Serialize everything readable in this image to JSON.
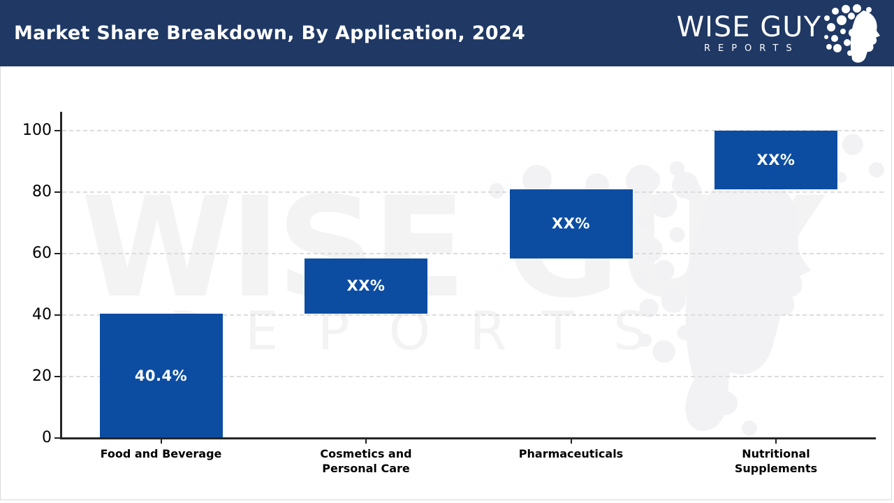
{
  "header": {
    "title": "Market Share Breakdown, By Application, 2024",
    "logo": {
      "brand": "WISE GUY",
      "sub": "REPORTS"
    }
  },
  "watermark": {
    "main": "WISE GUY",
    "sub": "REPORTS"
  },
  "chart_data": {
    "type": "bar",
    "subtype": "waterfall",
    "title": "Market Share Breakdown, By Application, 2024",
    "categories": [
      "Food and Beverage",
      "Cosmetics and\nPersonal Care",
      "Pharmaceuticals",
      "Nutritional\nSupplements"
    ],
    "segments": [
      {
        "name": "Food and Beverage",
        "start": 0,
        "end": 40.4,
        "label": "40.4%"
      },
      {
        "name": "Cosmetics and Personal Care",
        "start": 40.4,
        "end": 58.5,
        "label": "XX%"
      },
      {
        "name": "Pharmaceuticals",
        "start": 58.5,
        "end": 81,
        "label": "XX%"
      },
      {
        "name": "Nutritional Supplements",
        "start": 81,
        "end": 100,
        "label": "XX%"
      }
    ],
    "ylim": [
      0,
      100
    ],
    "yticks": [
      0,
      20,
      40,
      60,
      80,
      100
    ],
    "xlabel": "",
    "ylabel": "",
    "grid": "horizontal-dashed",
    "legend": false,
    "bar_color": "#0c4da2"
  },
  "colors": {
    "header_bg": "#1f3864",
    "bar": "#0c4da2",
    "grid": "#dcdcdc",
    "axis": "#262626",
    "watermark": "#f3f3f4",
    "title_text": "#ffffff",
    "bar_label_text": "#ffffff"
  }
}
